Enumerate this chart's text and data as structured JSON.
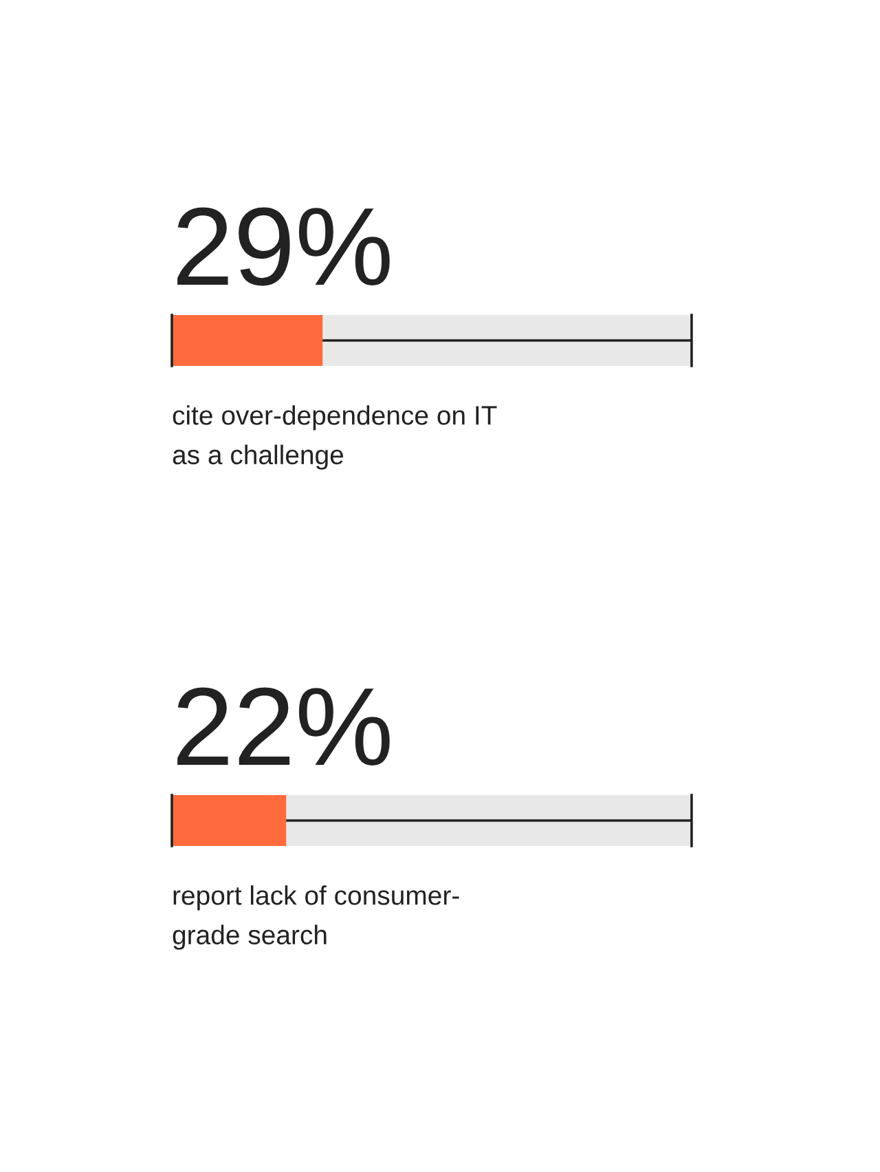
{
  "chart_data": [
    {
      "type": "bar",
      "orientation": "horizontal",
      "stacked": true,
      "categories": [
        null
      ],
      "xlim": [
        0,
        100
      ],
      "tick_labels": false,
      "series": [
        {
          "color": "#ff6b3d",
          "values": [
            29
          ],
          "value_labels": [
            "29%"
          ]
        },
        {
          "color": "#e8e8e8",
          "values": [
            71
          ]
        }
      ],
      "annotations": [
        "cite over-dependence on IT\nas a challenge"
      ]
    },
    {
      "type": "bar",
      "orientation": "horizontal",
      "stacked": true,
      "categories": [
        null
      ],
      "xlim": [
        0,
        100
      ],
      "tick_labels": false,
      "series": [
        {
          "color": "#ff6b3d",
          "values": [
            22
          ],
          "value_labels": [
            "22%"
          ]
        },
        {
          "color": "#e8e8e8",
          "values": [
            78
          ]
        }
      ],
      "annotations": [
        "report lack of consumer-\ngrade search"
      ]
    }
  ]
}
